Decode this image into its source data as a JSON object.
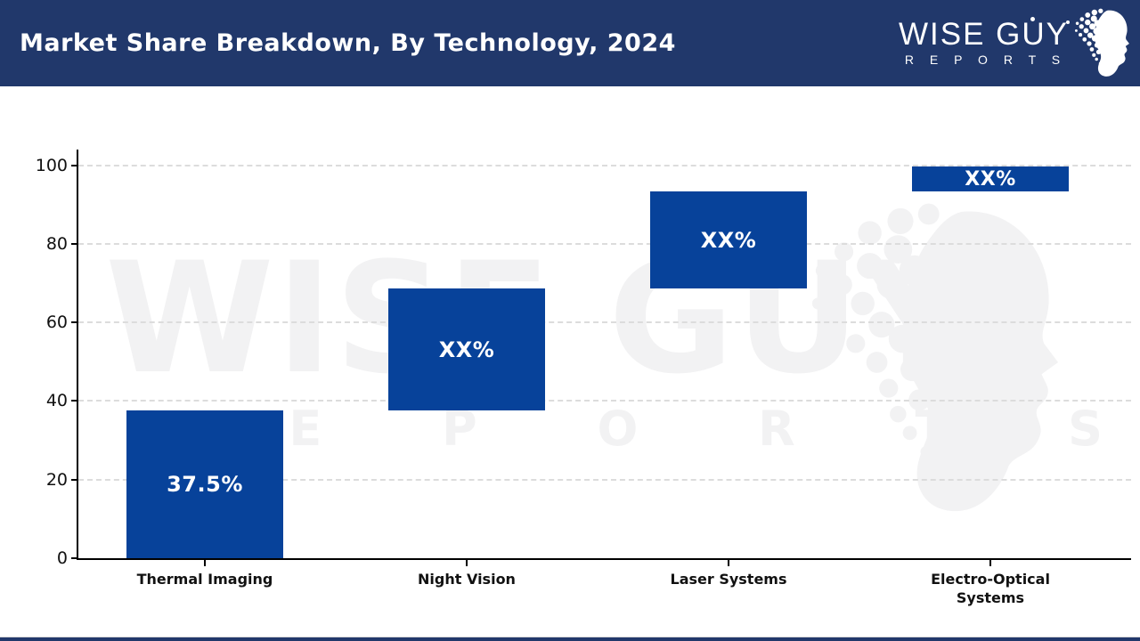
{
  "header": {
    "title": "Market Share Breakdown, By Technology, 2024",
    "logo": {
      "name_line": "WISE GUY",
      "sub_line": "R E P O R T S"
    }
  },
  "watermark": {
    "name_line": "WISE GUY",
    "sub_line": "R E P O R T S"
  },
  "colors": {
    "header_bg": "#21386b",
    "footer_bg": "#21386b",
    "bar_fill": "#07429a",
    "bar_label_text": "#ffffff",
    "grid_line": "#dcdcdc",
    "axis_line": "#000000",
    "watermark": "#f2f2f3",
    "background": "#ffffff"
  },
  "chart_data": {
    "type": "bar",
    "subtype": "waterfall",
    "title": "Market Share Breakdown, By Technology, 2024",
    "xlabel": "",
    "ylabel": "",
    "ylim": [
      0,
      104
    ],
    "yticks": [
      0,
      20,
      40,
      60,
      80,
      100
    ],
    "grid": "horizontal-dashed",
    "legend": null,
    "categories": [
      "Thermal Imaging",
      "Night Vision",
      "Laser Systems",
      "Electro-Optical Systems"
    ],
    "segments": [
      {
        "category": "Thermal Imaging",
        "start": 0,
        "end": 37.5,
        "value_label": "37.5%"
      },
      {
        "category": "Night Vision",
        "start": 37.5,
        "end": 68.6,
        "value_label": "XX%"
      },
      {
        "category": "Laser Systems",
        "start": 68.6,
        "end": 93.3,
        "value_label": "XX%"
      },
      {
        "category": "Electro-Optical Systems",
        "start": 93.3,
        "end": 99.6,
        "value_label": "XX%"
      }
    ]
  }
}
